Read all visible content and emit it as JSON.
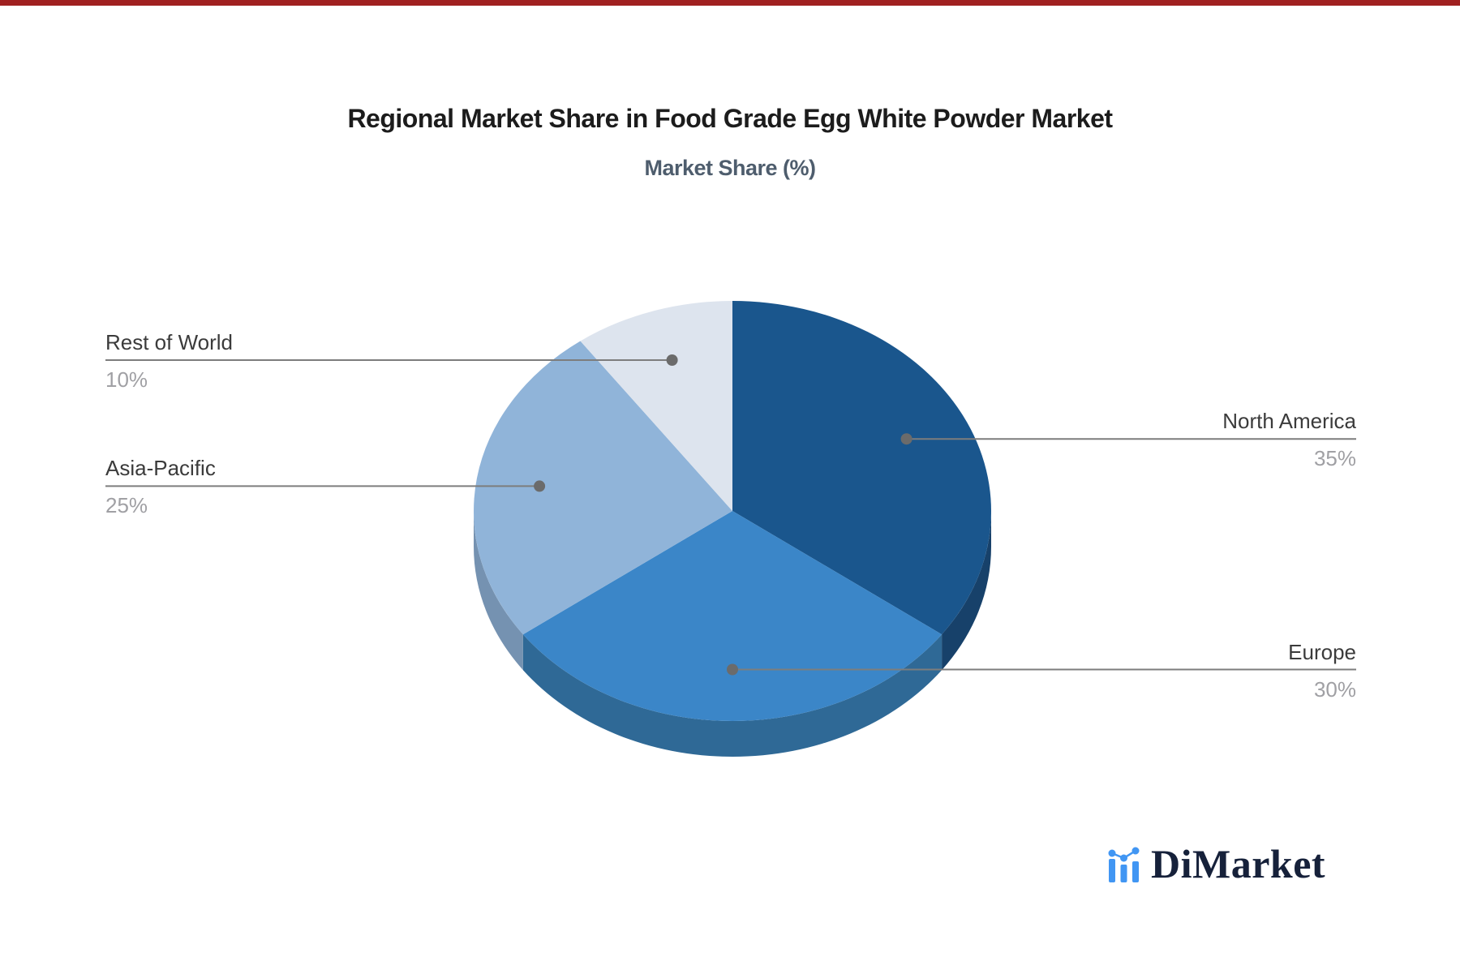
{
  "page": {
    "background": "#ffffff",
    "top_strip_color": "#a02020"
  },
  "chart_data": {
    "type": "pie",
    "title": "Regional Market Share in Food Grade Egg White Powder Market",
    "subtitle": "Market Share (%)",
    "unit": "%",
    "effect": "3d-depth",
    "start_angle": "12-o-clock",
    "direction": "clockwise",
    "legend": "none",
    "label_layout": "callout-leader-lines",
    "categories": [
      "North America",
      "Europe",
      "Asia-Pacific",
      "Rest of World"
    ],
    "values": [
      35,
      30,
      25,
      10
    ],
    "segments": [
      {
        "label": "North America",
        "value": 35,
        "display": "35%",
        "color": "#1a568d",
        "side_color": "#17416a",
        "label_side": "right"
      },
      {
        "label": "Europe",
        "value": 30,
        "display": "30%",
        "color": "#3b86c8",
        "side_color": "#2f6996",
        "label_side": "right"
      },
      {
        "label": "Asia-Pacific",
        "value": 25,
        "display": "25%",
        "color": "#90b4d9",
        "side_color": "#7592b1",
        "label_side": "left"
      },
      {
        "label": "Rest of World",
        "value": 10,
        "display": "10%",
        "color": "#dde4ee",
        "side_color": "#c2cbd9",
        "label_side": "left"
      }
    ],
    "style": {
      "title_color": "#1c1c1c",
      "subtitle_color": "#4e5d6d",
      "label_color": "#3b3b3b",
      "value_color": "#a0a0a4",
      "leader_line_color": "#7d7d7d",
      "leader_dot_color": "#6b6b6b"
    }
  },
  "branding": {
    "name": "DiMarket",
    "icon": "bar-chart-logo-icon",
    "icon_color": "#4196f3",
    "text_color": "#16213a"
  }
}
